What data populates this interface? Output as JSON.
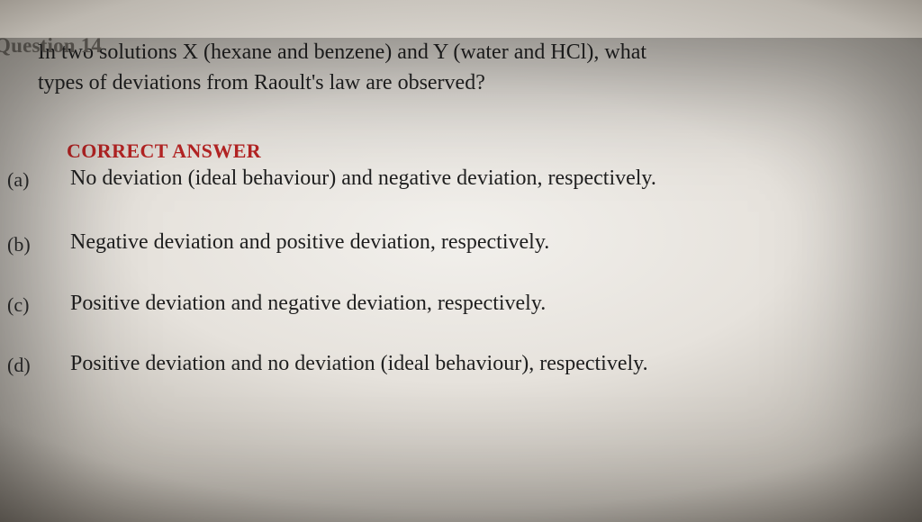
{
  "question": {
    "number_label": "Question 14",
    "prompt_line1": "In two solutions X (hexane and benzene) and Y (water and HCl), what",
    "prompt_line2": "types of deviations from Raoult's law are observed?"
  },
  "correct_label": "CORRECT ANSWER",
  "options": [
    {
      "letter": "(a)",
      "text": "No deviation (ideal behaviour) and negative deviation, respectively."
    },
    {
      "letter": "(b)",
      "text": "Negative deviation and positive deviation, respectively."
    },
    {
      "letter": "(c)",
      "text": "Positive deviation and negative deviation, respectively."
    },
    {
      "letter": "(d)",
      "text": "Positive deviation and no deviation (ideal behaviour), respectively."
    }
  ],
  "colors": {
    "correct_label": "#b62424",
    "body_text": "#2a2a2a",
    "header_text": "#6f6a63",
    "bg_center": "#f2f0ec",
    "bg_edge": "#6d665d"
  },
  "typography": {
    "family": "Georgia, Times New Roman, serif",
    "prompt_size_pt": 18,
    "option_size_pt": 18,
    "correct_label_size_pt": 16,
    "header_size_pt": 17
  }
}
